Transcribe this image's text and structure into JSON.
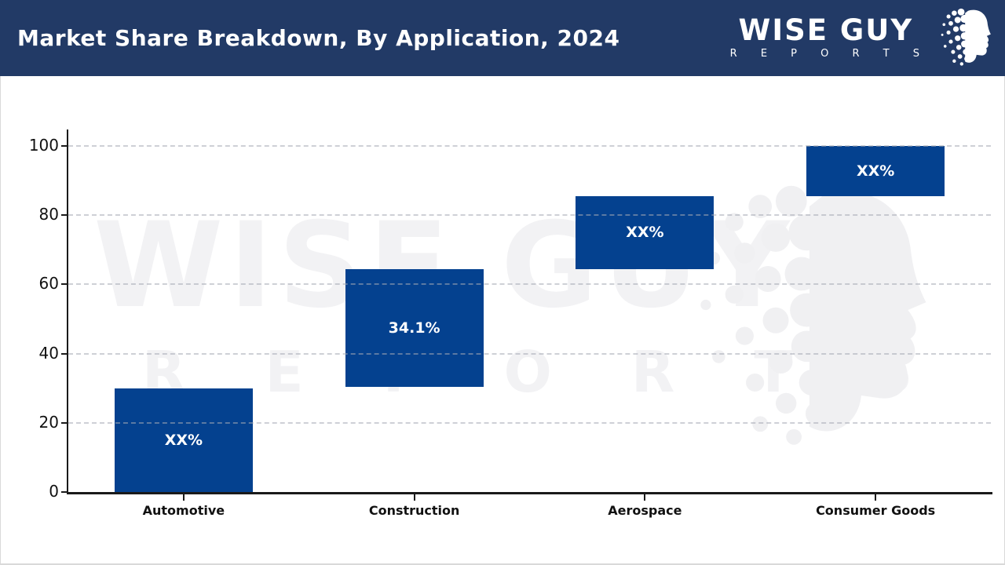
{
  "header": {
    "title": "Market Share Breakdown, By Application, 2024",
    "bg_color": "#223a66",
    "logo": {
      "line1": "WISE GUY",
      "line2": "R E P O R T S"
    }
  },
  "watermark": {
    "line1": "WISE GUY",
    "line2": "R E P O R T S"
  },
  "chart_data": {
    "type": "bar",
    "subtype": "waterfall",
    "title": "Market Share Breakdown, By Application, 2024",
    "xlabel": "",
    "ylabel": "",
    "categories": [
      "Automotive",
      "Construction",
      "Aerospace",
      "Consumer Goods"
    ],
    "segments": [
      {
        "category": "Automotive",
        "start": 0,
        "end": 30,
        "label": "XX%"
      },
      {
        "category": "Construction",
        "start": 30.4,
        "end": 64.5,
        "label": "34.1%"
      },
      {
        "category": "Aerospace",
        "start": 64.4,
        "end": 85.5,
        "label": "XX%"
      },
      {
        "category": "Consumer Goods",
        "start": 85.6,
        "end": 100,
        "label": "XX%"
      }
    ],
    "yticks": [
      0,
      20,
      40,
      60,
      80,
      100
    ],
    "ylim": [
      0,
      105
    ],
    "grid": "horizontal dashed",
    "legend": "none",
    "bar_color": "#04418f",
    "label_color": "#ffffff",
    "grid_color": "#d9d9d9",
    "axis_color": "#1a1a1a"
  }
}
